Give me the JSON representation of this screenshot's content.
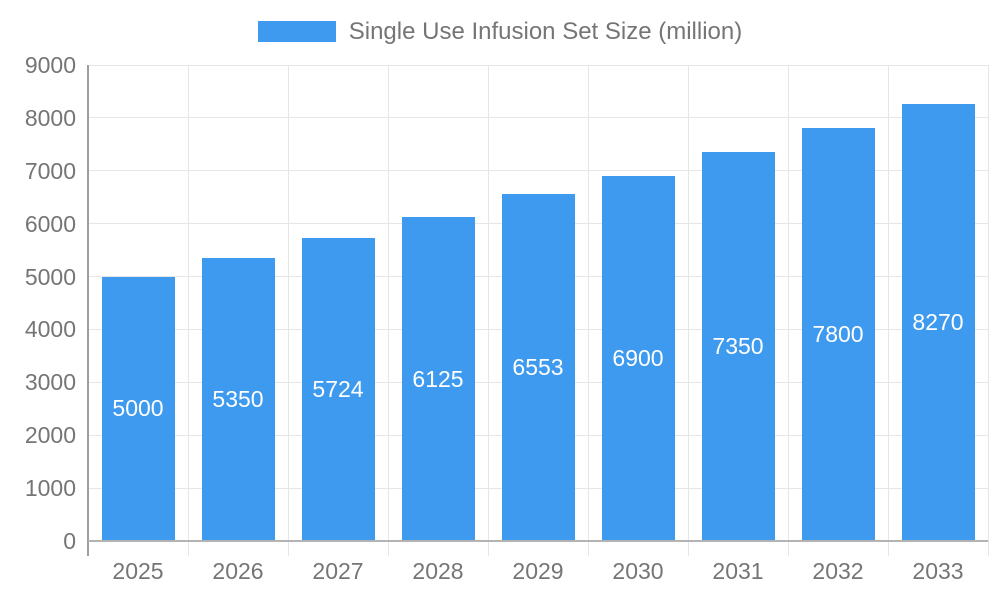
{
  "legend": {
    "label": "Single Use Infusion Set Size (million)"
  },
  "colors": {
    "bar": "#3E9AEE",
    "bar_label": "#ffffff",
    "axis_text": "#757575",
    "gridline": "#e6e6e6",
    "baseline": "#b3b3b3",
    "axis_line": "#9e9e9e"
  },
  "chart_data": {
    "type": "bar",
    "title": "Single Use Infusion Set Size (million)",
    "series_name": "Single Use Infusion Set Size (million)",
    "categories": [
      "2025",
      "2026",
      "2027",
      "2028",
      "2029",
      "2030",
      "2031",
      "2032",
      "2033"
    ],
    "values": [
      5000,
      5350,
      5724,
      6125,
      6553,
      6900,
      7350,
      7800,
      8270
    ],
    "value_labels": [
      "5000",
      "5350",
      "5724",
      "6125",
      "6553",
      "6900",
      "7350",
      "7800",
      "8270"
    ],
    "value_label_position": "inside-center",
    "xlabel": "",
    "ylabel": "",
    "ylim": [
      0,
      9000
    ],
    "yticks": [
      "0",
      "1000",
      "2000",
      "3000",
      "4000",
      "5000",
      "6000",
      "7000",
      "8000",
      "9000"
    ],
    "grid": true,
    "legend_position": "top",
    "bar_color": "#3E9AEE"
  }
}
